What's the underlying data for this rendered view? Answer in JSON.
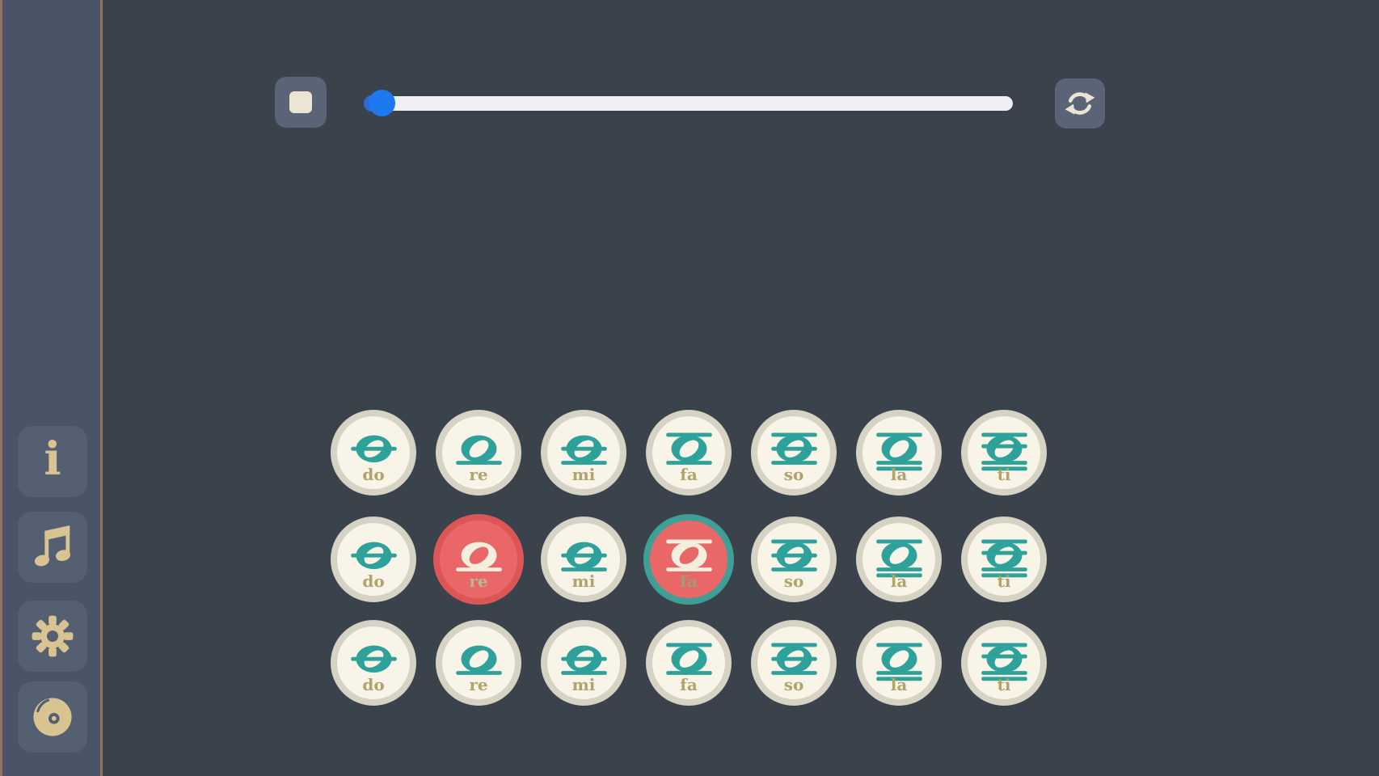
{
  "colors": {
    "background": "#3a424c",
    "sidebar_bg": "#4a5466",
    "sidebar_border": "#8e7568",
    "sidebar_button_bg": "#545f71",
    "sidebar_icon": "#d8c391",
    "toolbar_button_bg": "#5a6476",
    "toolbar_icon": "#ede5d4",
    "slider_track": "#eef0f2",
    "slider_thumb": "#1e78ee",
    "note_teal": "#2da19a",
    "note_red": "#e96767"
  },
  "sidebar": {
    "items": [
      {
        "id": "info",
        "icon": "info-icon"
      },
      {
        "id": "music",
        "icon": "music-note-icon"
      },
      {
        "id": "settings",
        "icon": "gear-icon"
      },
      {
        "id": "records",
        "icon": "disc-icon"
      }
    ]
  },
  "transport": {
    "stop": {
      "icon": "stop-icon"
    },
    "slider": {
      "value_percent": 2
    },
    "refresh": {
      "icon": "refresh-icon"
    }
  },
  "solfege": {
    "labels": [
      "do",
      "re",
      "mi",
      "fa",
      "so",
      "la",
      "ti"
    ],
    "staff_lines": {
      "do": [
        22
      ],
      "re": [
        38.5
      ],
      "mi": [
        22,
        38.5
      ],
      "fa": [
        5.5,
        38.5
      ],
      "so": [
        5.5,
        22,
        38.5
      ],
      "la": [
        5.5,
        38.5,
        45.5
      ],
      "ti": [
        5.5,
        19,
        38.5,
        45.5
      ]
    },
    "states": {
      "normal": {
        "ring": "#d6d3c4",
        "fill": "#f8f4e7",
        "glyph": "#2da19a",
        "label": "#b2a26b"
      },
      "active": {
        "ring": "#dd5656",
        "fill": "#e96767",
        "glyph": "#f3eedd",
        "label": "#b5b98c"
      },
      "active_outline": {
        "ring": "#3f9e95",
        "fill": "#e96767",
        "glyph": "#f3eedd",
        "label": "#a89a71"
      }
    },
    "rows": [
      {
        "cells": [
          {
            "note": "do",
            "state": "normal"
          },
          {
            "note": "re",
            "state": "normal"
          },
          {
            "note": "mi",
            "state": "normal"
          },
          {
            "note": "fa",
            "state": "normal"
          },
          {
            "note": "so",
            "state": "normal"
          },
          {
            "note": "la",
            "state": "normal"
          },
          {
            "note": "ti",
            "state": "normal"
          }
        ]
      },
      {
        "cells": [
          {
            "note": "do",
            "state": "normal"
          },
          {
            "note": "re",
            "state": "active"
          },
          {
            "note": "mi",
            "state": "normal"
          },
          {
            "note": "fa",
            "state": "active_outline"
          },
          {
            "note": "so",
            "state": "normal"
          },
          {
            "note": "la",
            "state": "normal"
          },
          {
            "note": "ti",
            "state": "normal"
          }
        ]
      },
      {
        "cells": [
          {
            "note": "do",
            "state": "normal"
          },
          {
            "note": "re",
            "state": "normal"
          },
          {
            "note": "mi",
            "state": "normal"
          },
          {
            "note": "fa",
            "state": "normal"
          },
          {
            "note": "so",
            "state": "normal"
          },
          {
            "note": "la",
            "state": "normal"
          },
          {
            "note": "ti",
            "state": "normal"
          }
        ]
      }
    ]
  }
}
